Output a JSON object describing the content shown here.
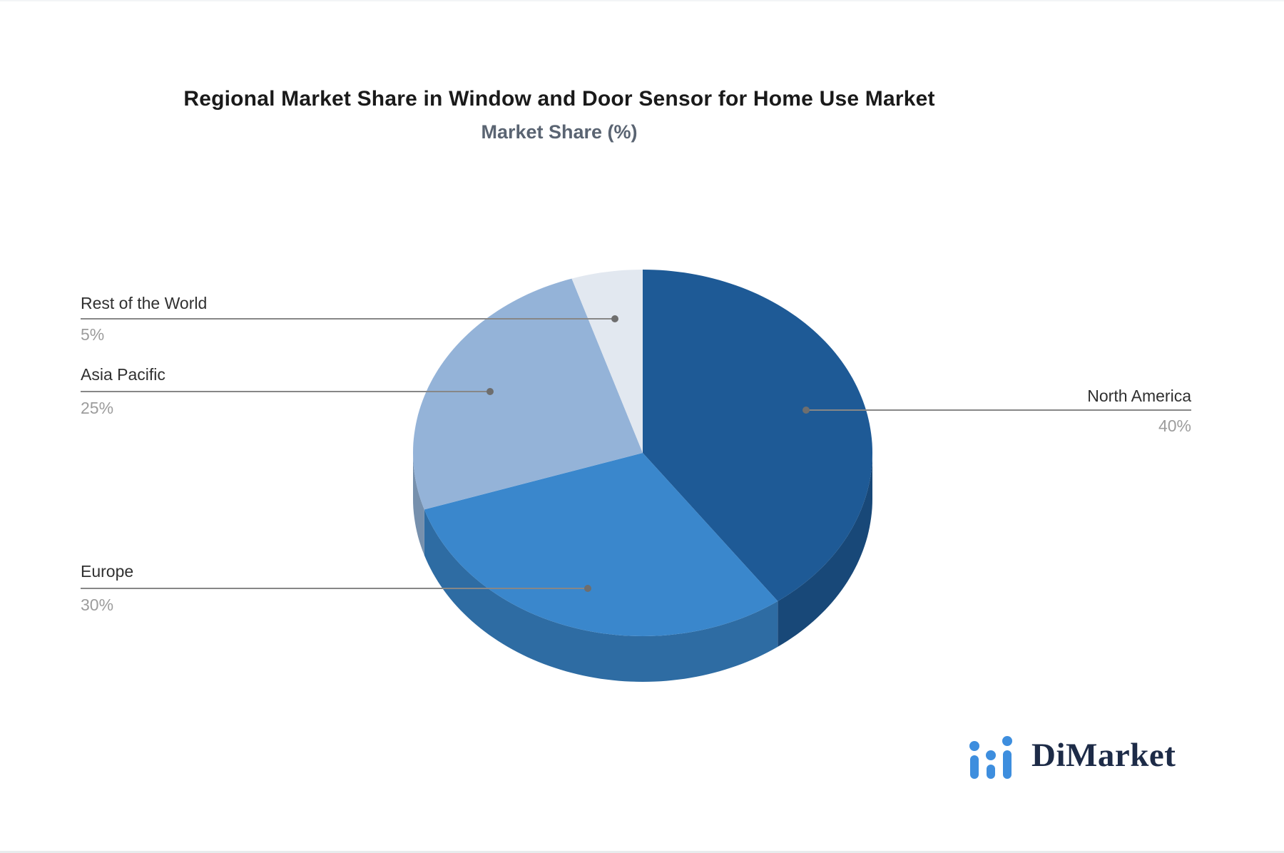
{
  "title": "Regional Market Share in Window and Door Sensor for Home Use Market",
  "subtitle": "Market Share (%)",
  "brand": {
    "name": "DiMarket",
    "icon": "bar-chart-logo-icon",
    "icon_color": "#3e8ede",
    "text_color": "#1d2b47"
  },
  "colors": {
    "background": "#ffffff",
    "title_text": "#1a1a1a",
    "subtitle_text": "#5a6472",
    "label_text": "#303030",
    "percent_text": "#9c9c9c",
    "leader_line": "#878787",
    "leader_dot": "#6e6e6e"
  },
  "chart_data": {
    "type": "pie",
    "title": "Regional Market Share in Window and Door Sensor for Home Use Market",
    "subtitle": "Market Share (%)",
    "unit": "%",
    "style": "3d",
    "start": "top",
    "direction": "clockwise",
    "legend_position": "none",
    "label_position": "outside-callouts",
    "slices": [
      {
        "label": "North America",
        "value": 40,
        "pct_label": "40%",
        "color": "#1e5a96",
        "side_color": "#184878"
      },
      {
        "label": "Europe",
        "value": 30,
        "pct_label": "30%",
        "color": "#3a87cc",
        "side_color": "#2e6ca3"
      },
      {
        "label": "Asia Pacific",
        "value": 25,
        "pct_label": "25%",
        "color": "#94b3d8",
        "side_color": "#7690ad"
      },
      {
        "label": "Rest of the World",
        "value": 5,
        "pct_label": "5%",
        "color": "#e2e8f0",
        "side_color": "#b5bac1"
      }
    ]
  }
}
